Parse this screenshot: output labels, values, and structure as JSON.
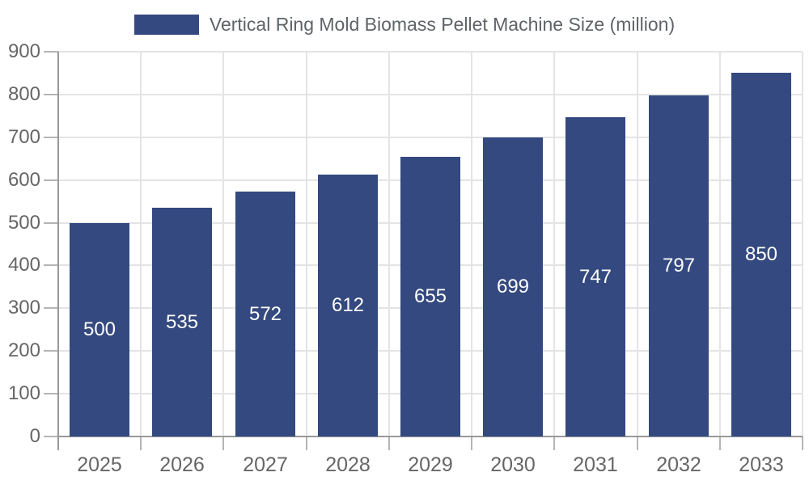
{
  "legend": {
    "label": "Vertical Ring Mold Biomass Pellet Machine Size (million)"
  },
  "colors": {
    "bar": "#34497f",
    "grid": "#e4e4e4",
    "tick_mark": "#b5b5b5",
    "axis": "#999999",
    "tick_text": "#666666",
    "legend_text": "#5f6368",
    "bar_label": "#ffffff",
    "background": "#ffffff"
  },
  "chart_data": {
    "type": "bar",
    "title": "Vertical Ring Mold Biomass Pellet Machine Size (million)",
    "categories": [
      "2025",
      "2026",
      "2027",
      "2028",
      "2029",
      "2030",
      "2031",
      "2032",
      "2033"
    ],
    "values": [
      500,
      535,
      572,
      612,
      655,
      699,
      747,
      797,
      850
    ],
    "xlabel": "",
    "ylabel": "",
    "ylim": [
      0,
      900
    ],
    "yticks": [
      0,
      100,
      200,
      300,
      400,
      500,
      600,
      700,
      800,
      900
    ],
    "grid": true,
    "legend_position": "top",
    "data_labels": "inside-center"
  }
}
